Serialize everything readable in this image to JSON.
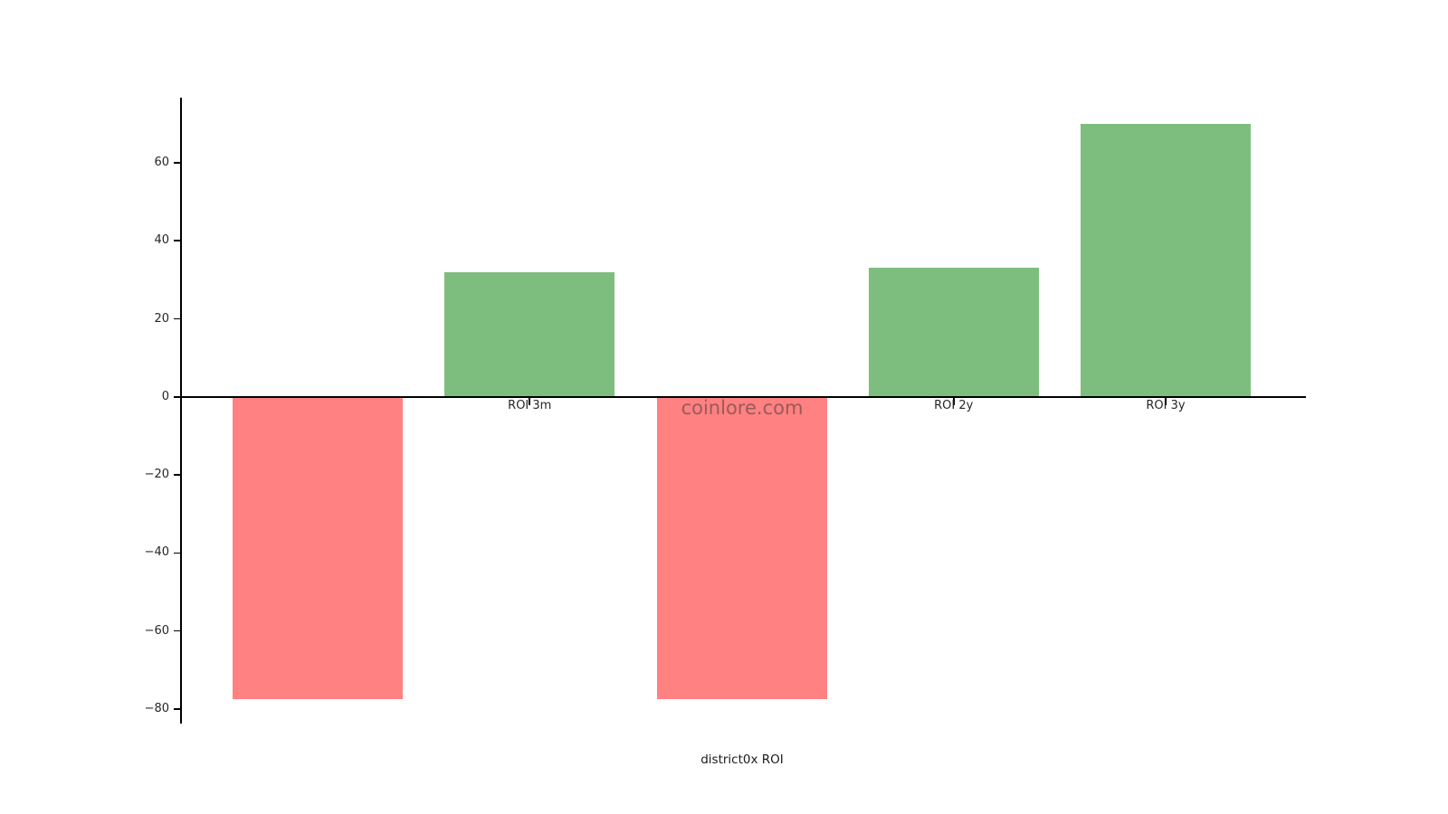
{
  "chart_data": {
    "type": "bar",
    "title": "",
    "xlabel": "district0x ROI",
    "ylabel": "",
    "categories": [
      "",
      "ROI 3m",
      "",
      "ROI 2y",
      "ROI 3y"
    ],
    "values": [
      -77,
      32,
      -77,
      33,
      70
    ],
    "bar_colors": [
      "#ff8181",
      "#7dbe7e",
      "#ff8181",
      "#7dbe7e",
      "#7dbe7e"
    ],
    "positive_color": "#7dbe7e",
    "negative_color": "#ff8181",
    "ylim": [
      -85,
      77
    ],
    "yticks": [
      60,
      40,
      20,
      0,
      -20,
      -40,
      -60,
      -80
    ],
    "ytick_labels": [
      "60",
      "40",
      "20",
      "0",
      "−20",
      "−40",
      "−60",
      "−80"
    ],
    "grid": false,
    "legend_position": "none"
  },
  "watermark": {
    "text": "coinlore.com",
    "color": "rgba(51,51,51,0.5)"
  },
  "colors": {
    "axis": "#000000",
    "tick_label": "#262626",
    "background": "#ffffff"
  }
}
